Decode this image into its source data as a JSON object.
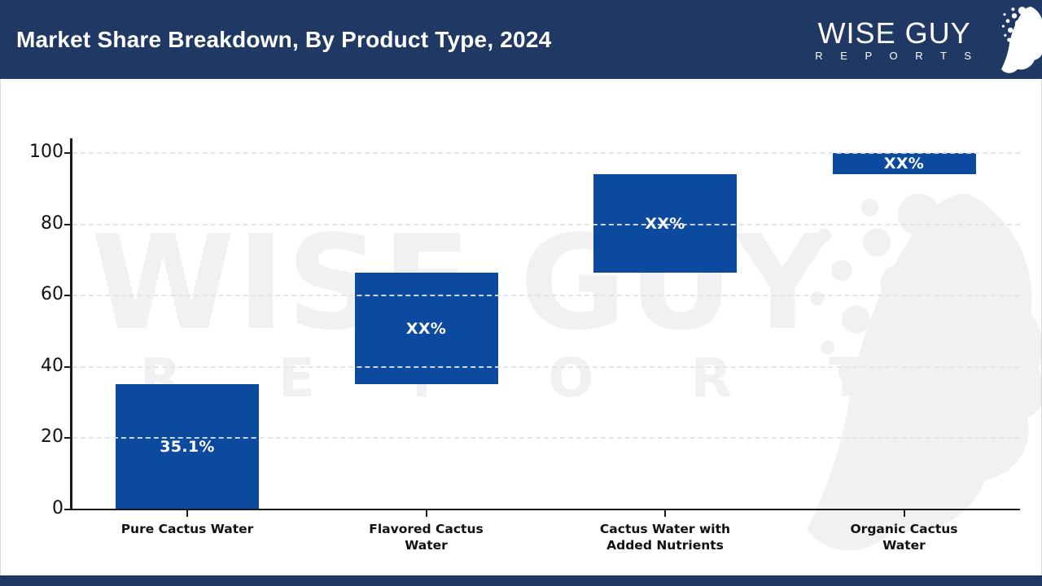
{
  "header": {
    "title": "Market Share Breakdown, By Product Type, 2024",
    "logo": {
      "line1": "WISE GUY",
      "line2": "R E P O R T S"
    }
  },
  "watermark": {
    "line1": "WISE GUY",
    "line2": "R E P O R T S"
  },
  "colors": {
    "header_bg": "#203864",
    "bar": "#0b4a9f",
    "grid": "#e3e3e3",
    "axis": "#1a1a1a",
    "watermark": "#f1f1f3",
    "bar_label": "#ffffff"
  },
  "chart_data": {
    "type": "bar",
    "subtype": "stacked-waterfall",
    "title": "Market Share Breakdown, By Product Type, 2024",
    "xlabel": "",
    "ylabel": "",
    "ylim": [
      0,
      100
    ],
    "yticks": [
      0,
      20,
      40,
      60,
      80,
      100
    ],
    "grid": "horizontal-dashed-over-bars",
    "legend": "none",
    "categories": [
      "Pure Cactus Water",
      "Flavored Cactus Water",
      "Cactus Water with Added Nutrients",
      "Organic Cactus Water"
    ],
    "segments": [
      {
        "category": "Pure Cactus Water",
        "category_lines": [
          "Pure Cactus Water"
        ],
        "start": 0,
        "end": 35.1,
        "label": "35.1%"
      },
      {
        "category": "Flavored Cactus Water",
        "category_lines": [
          "Flavored Cactus",
          "Water"
        ],
        "start": 35.1,
        "end": 66.3,
        "label": "XX%"
      },
      {
        "category": "Cactus Water with Added Nutrients",
        "category_lines": [
          "Cactus Water with",
          "Added Nutrients"
        ],
        "start": 66.3,
        "end": 94.0,
        "label": "XX%"
      },
      {
        "category": "Organic Cactus Water",
        "category_lines": [
          "Organic Cactus",
          "Water"
        ],
        "start": 94.0,
        "end": 100,
        "label": "XX%"
      }
    ]
  }
}
